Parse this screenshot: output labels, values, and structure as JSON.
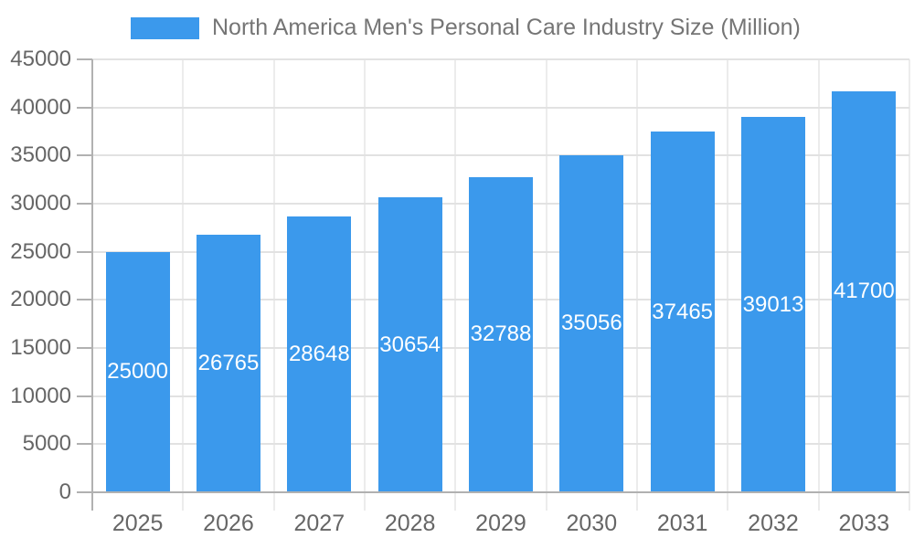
{
  "chart_data": {
    "type": "bar",
    "title": "North America Men's Personal Care Industry Size (Million)",
    "legend": {
      "position": "top",
      "label": "North America Men's Personal Care Industry Size (Million)"
    },
    "categories": [
      "2025",
      "2026",
      "2027",
      "2028",
      "2029",
      "2030",
      "2031",
      "2032",
      "2033"
    ],
    "series": [
      {
        "name": "North America Men's Personal Care Industry Size (Million)",
        "values": [
          25000,
          26765,
          28648,
          30654,
          32788,
          35056,
          37465,
          39013,
          41700
        ]
      }
    ],
    "bar_labels": [
      "25000",
      "26765",
      "28648",
      "30654",
      "32788",
      "35056",
      "37465",
      "39013",
      "41700"
    ],
    "xlabel": "",
    "ylabel": "",
    "ylim": [
      0,
      45000
    ],
    "yticks": [
      0,
      5000,
      10000,
      15000,
      20000,
      25000,
      30000,
      35000,
      40000,
      45000
    ],
    "grid": true,
    "colors": {
      "bar": "#3b99ec",
      "grid_h": "#e2e2e2",
      "grid_v": "#ececec",
      "axis": "#b1b1b1",
      "axis_label": "#666666",
      "legend_label": "#757575",
      "bar_label": "#ffffff",
      "background": "#ffffff"
    }
  }
}
